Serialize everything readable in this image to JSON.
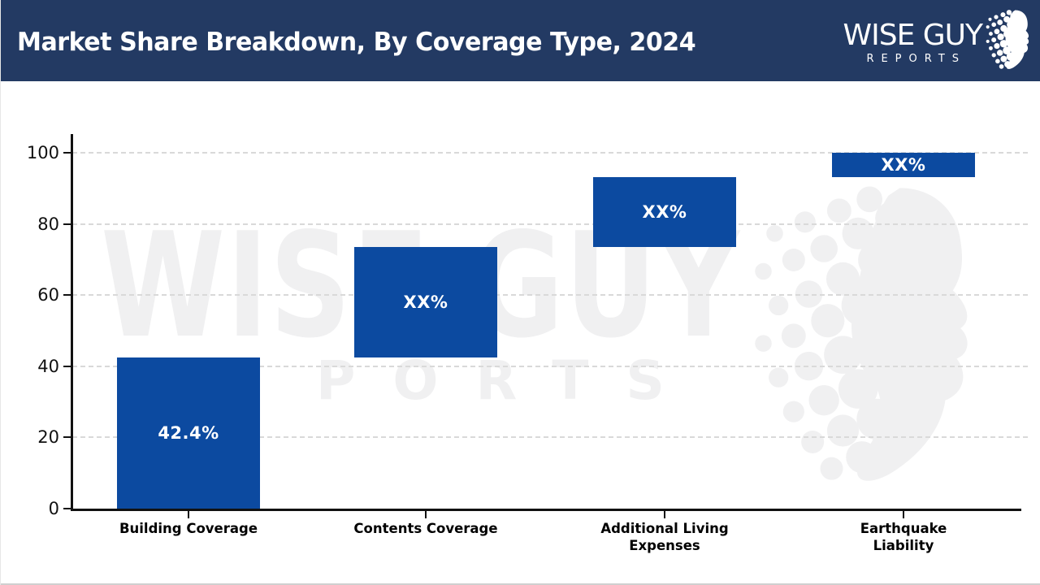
{
  "header": {
    "title": "Market Share Breakdown, By Coverage Type, 2024",
    "background_color": "#233a63",
    "logo": {
      "wordmark": "WISE GUY",
      "subtext": "REPORTS",
      "face_icon": "dotted-profile-face"
    }
  },
  "watermark": {
    "wordmark": "WISE GUY",
    "subtext": "PORTS",
    "face_icon": "dotted-profile-face",
    "color": "#f0f0f1"
  },
  "chart_data": {
    "type": "bar",
    "variant": "waterfall-stacked-segments",
    "title": "Market Share Breakdown, By Coverage Type, 2024",
    "categories": [
      "Building Coverage",
      "Contents Coverage",
      "Additional Living Expenses",
      "Earthquake Liability"
    ],
    "category_label_lines": [
      [
        "Building Coverage"
      ],
      [
        "Contents Coverage"
      ],
      [
        "Additional Living",
        "Expenses"
      ],
      [
        "Earthquake",
        "Liability"
      ]
    ],
    "series": [
      {
        "name": "Market share (%)",
        "segments": [
          {
            "category": "Building Coverage",
            "start": 0,
            "end": 42.4,
            "label": "42.4%"
          },
          {
            "category": "Contents Coverage",
            "start": 42.4,
            "end": 73.5,
            "label": "XX%"
          },
          {
            "category": "Additional Living Expenses",
            "start": 73.5,
            "end": 93.2,
            "label": "XX%"
          },
          {
            "category": "Earthquake Liability",
            "start": 93.2,
            "end": 100,
            "label": "XX%"
          }
        ]
      }
    ],
    "xlabel": "",
    "ylabel": "",
    "ylim": [
      0,
      100
    ],
    "yticks": [
      0,
      20,
      40,
      60,
      80,
      100
    ],
    "grid": "horizontal-dashed",
    "legend": "none",
    "bar_color": "#0c4aa0",
    "bar_label_color": "#ffffff",
    "axis_color": "#111111",
    "gridline_color": "#d9d9d9"
  }
}
